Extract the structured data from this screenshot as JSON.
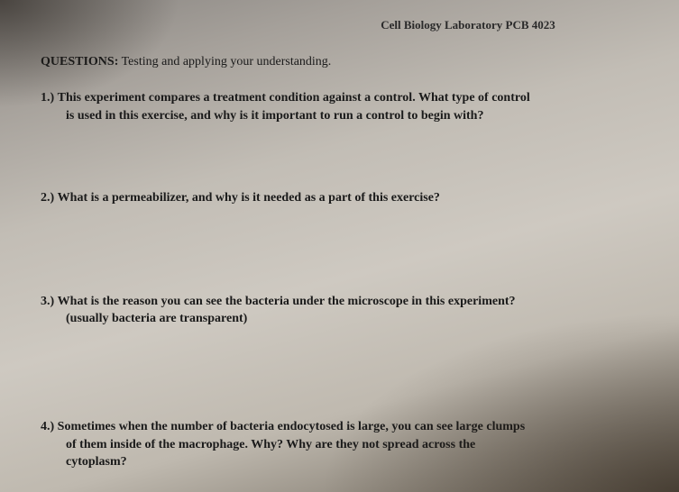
{
  "header": {
    "course_title": "Cell Biology Laboratory PCB 4023"
  },
  "section": {
    "label": "QUESTIONS:",
    "subtitle": "Testing and applying your understanding."
  },
  "questions": [
    {
      "number": "1.)",
      "line1": "This experiment compares a treatment condition against a control. What type of control",
      "line2": "is used in this exercise, and why is it important to run a control to begin with?"
    },
    {
      "number": "2.)",
      "line1": "What is a permeabilizer, and why is it needed as a part of this exercise?"
    },
    {
      "number": "3.)",
      "line1": "What is the reason you can see the bacteria under the microscope in this experiment?",
      "line2": "(usually bacteria are transparent)"
    },
    {
      "number": "4.)",
      "line1": "Sometimes when the number of bacteria endocytosed is large, you can see large clumps",
      "line2": "of them inside of the macrophage. Why? Why are they not spread across the",
      "line3": "cytoplasm?"
    }
  ]
}
